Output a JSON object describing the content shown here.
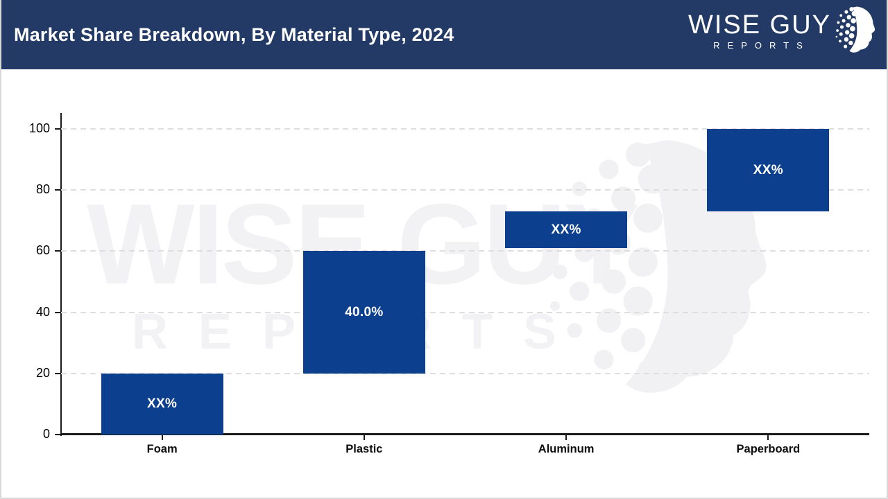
{
  "header": {
    "title": "Market Share Breakdown, By Material Type, 2024",
    "logo_line1": "WISE GUY",
    "logo_line2": "REPORTS"
  },
  "watermark": {
    "line1": "WISE GUY",
    "line2": "REPORTS"
  },
  "colors": {
    "header_bg": "#233a66",
    "bar": "#0d3f8f",
    "bar_label": "#ffffff",
    "axis": "#1a1a1a",
    "grid_dash": "#dedede",
    "tick_label": "#000000",
    "watermark": "#f2f2f4",
    "page_border": "#d9d9d9"
  },
  "chart_data": {
    "type": "bar",
    "subtype": "waterfall",
    "title": "Market Share Breakdown, By Material Type, 2024",
    "categories": [
      "Foam",
      "Plastic",
      "Aluminum",
      "Paperboard"
    ],
    "series": [
      {
        "name": "Market Share",
        "segments": [
          {
            "category": "Foam",
            "start": 0,
            "end": 20,
            "label": "XX%"
          },
          {
            "category": "Plastic",
            "start": 20,
            "end": 60,
            "label": "40.0%"
          },
          {
            "category": "Aluminum",
            "start": 61,
            "end": 73,
            "label": "XX%"
          },
          {
            "category": "Paperboard",
            "start": 73,
            "end": 100,
            "label": "XX%"
          }
        ]
      }
    ],
    "xlabel": "",
    "ylabel": "",
    "yticks": [
      0,
      20,
      40,
      60,
      80,
      100
    ],
    "ylim": [
      0,
      105
    ],
    "grid": "horizontal-dashed",
    "legend": "none"
  }
}
